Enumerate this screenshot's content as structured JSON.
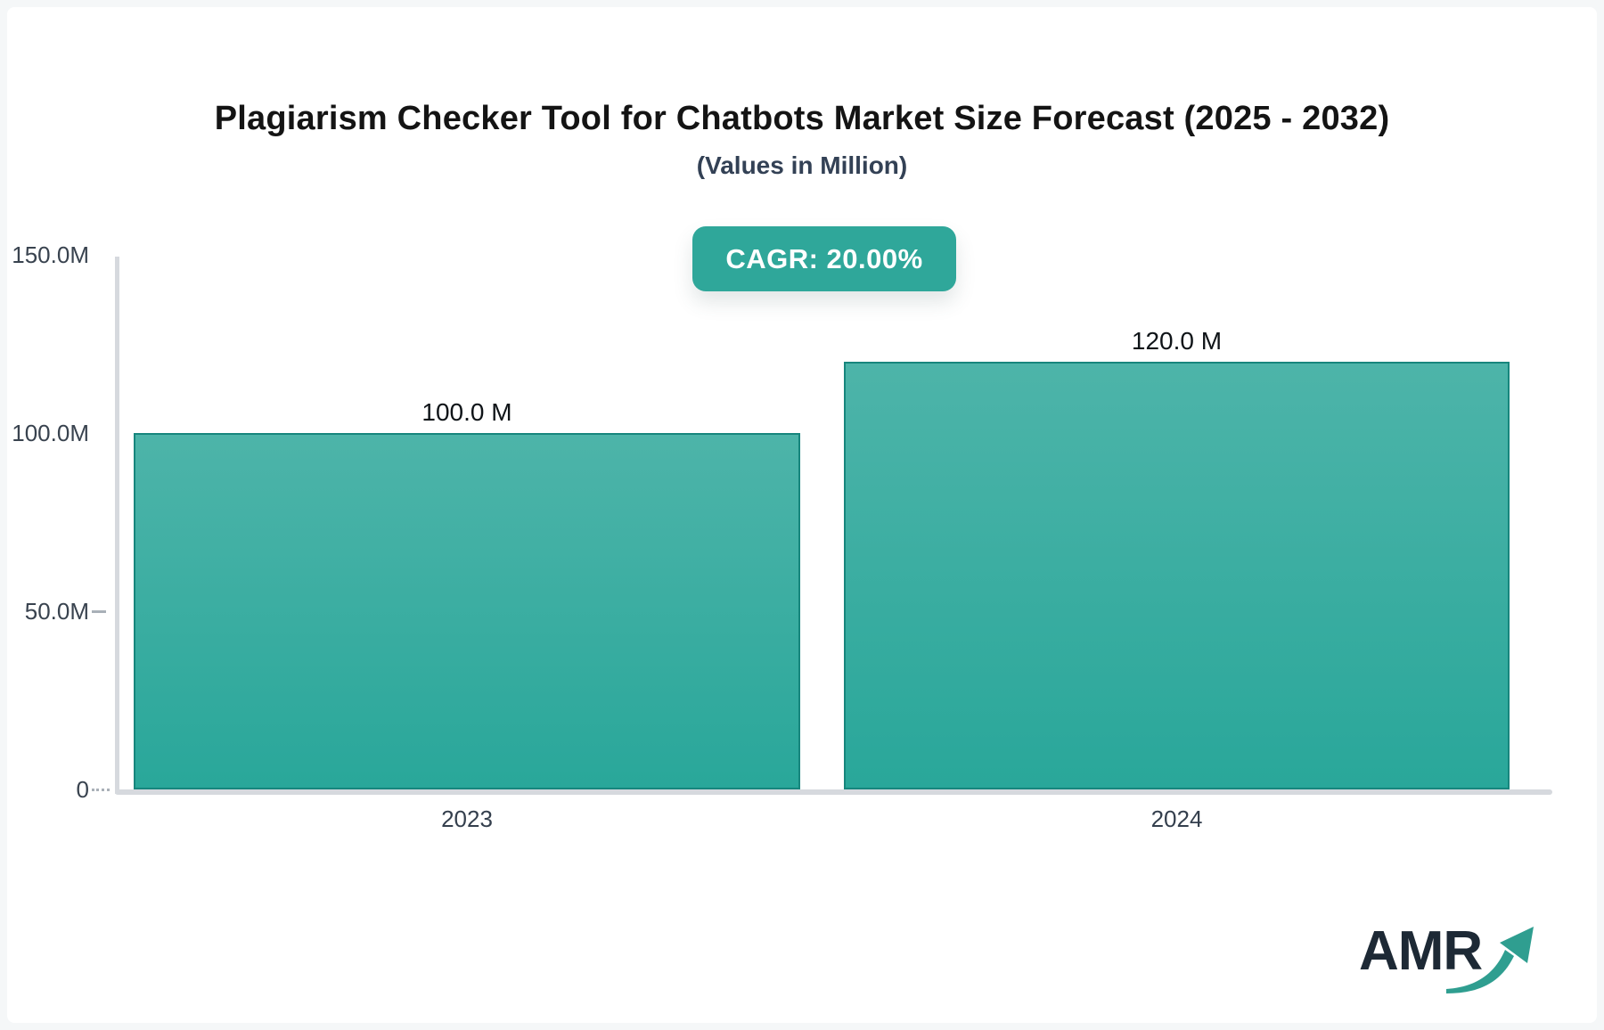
{
  "title": "Plagiarism Checker Tool for Chatbots Market Size Forecast (2025 - 2032)",
  "subtitle": "(Values in Million)",
  "cagr_badge_label": "CAGR: 20.00%",
  "chart_data": {
    "type": "bar",
    "title": "Plagiarism Checker Tool for Chatbots Market Size Forecast (2025 - 2032)",
    "subtitle": "(Values in Million)",
    "cagr_percent": "20.00%",
    "categories": [
      "2023",
      "2024"
    ],
    "values": [
      100.0,
      120.0
    ],
    "bar_labels": [
      "100.0 M",
      "120.0 M"
    ],
    "unit": "Million",
    "xlabel": "",
    "ylabel": "",
    "ylim": [
      0,
      150
    ],
    "ytick_labels": [
      "150.0M",
      "100.0M",
      "50.0M",
      "0"
    ],
    "ytick_values": [
      150,
      100,
      50,
      0
    ],
    "ytick_dash_values": [
      50,
      0
    ],
    "grid": false,
    "legend": false
  },
  "colors": {
    "badge_bg": "#2fa79a",
    "bar_gradient_top": "#4db4a9",
    "bar_gradient_bottom": "#29a79a",
    "bar_border": "#17867d",
    "axis_line": "#d6d9de",
    "axis_text": "#39434f",
    "bar_label_text": "#0f1418",
    "title_text": "#141414",
    "subtitle_text": "#334155",
    "logo_text": "#1d2935",
    "logo_arrow": "#2f9e90"
  },
  "logo": {
    "text": "AMR"
  }
}
